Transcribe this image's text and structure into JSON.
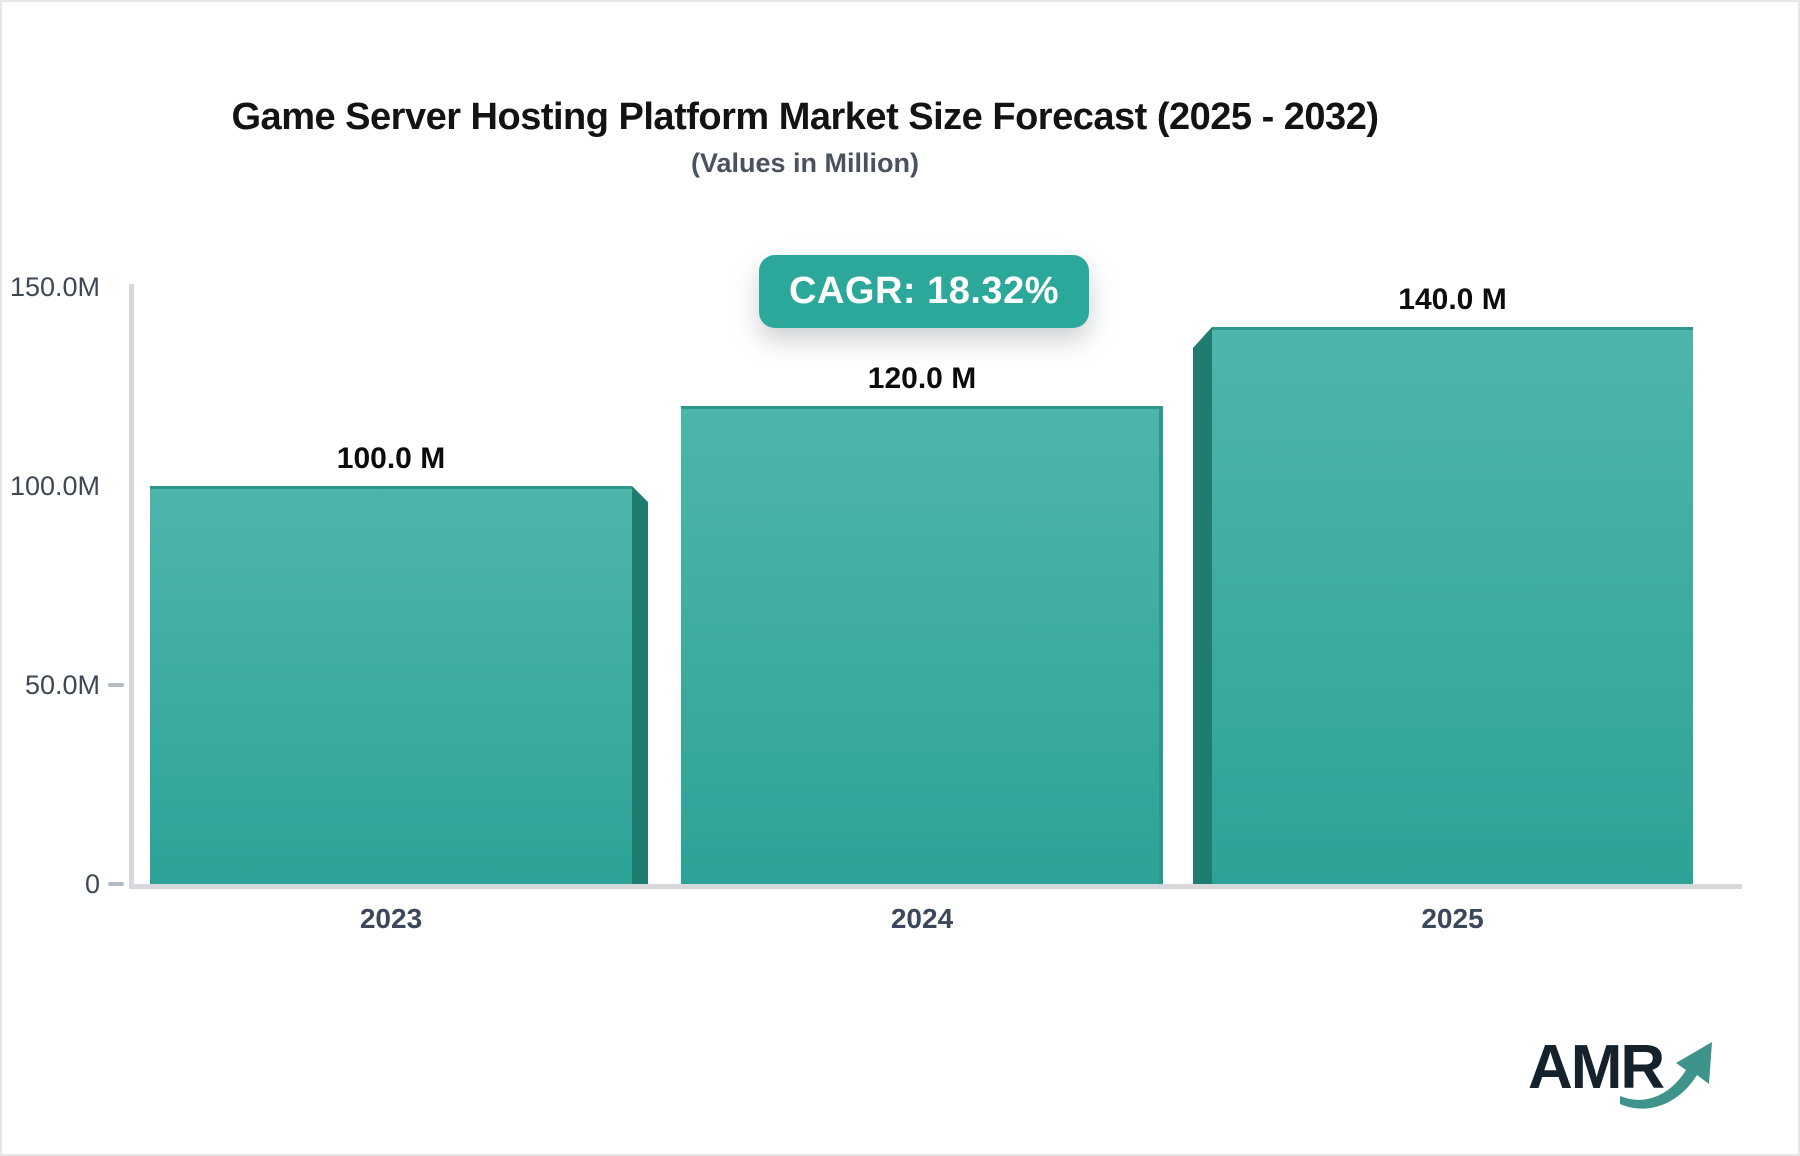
{
  "header": {
    "title": "Game Server Hosting Platform Market Size Forecast (2025 - 2032)",
    "subtitle": "(Values in Million)"
  },
  "badge": {
    "label": "CAGR: 18.32%",
    "bg": "#2CA89A",
    "text_color": "#ffffff"
  },
  "chart_data": {
    "type": "bar",
    "title": "Game Server Hosting Platform Market Size Forecast (2025 - 2032)",
    "subtitle": "(Values in Million)",
    "cagr_percent": 18.32,
    "unit": "Million",
    "categories": [
      "2023",
      "2024",
      "2025"
    ],
    "values": [
      100.0,
      120.0,
      140.0
    ],
    "value_labels": [
      "100.0 M",
      "120.0 M",
      "140.0 M"
    ],
    "ylim": [
      0,
      150
    ],
    "yticks": [
      {
        "label": "150.0M",
        "value": 150,
        "dash": false
      },
      {
        "label": "100.0M",
        "value": 100,
        "dash": false
      },
      {
        "label": "50.0M",
        "value": 50,
        "dash": true
      },
      {
        "label": "0",
        "value": 0,
        "dash": true
      }
    ],
    "grid": false,
    "legend": false,
    "bar_color_top": "#4EB5AB",
    "bar_color_bottom": "#2CA396",
    "bar_side_color": "#1F7C71",
    "axis_color": "#d6d8dc"
  },
  "logo": {
    "text": "AMR",
    "text_color": "#15222B",
    "arrow_color": "#3E938A"
  }
}
